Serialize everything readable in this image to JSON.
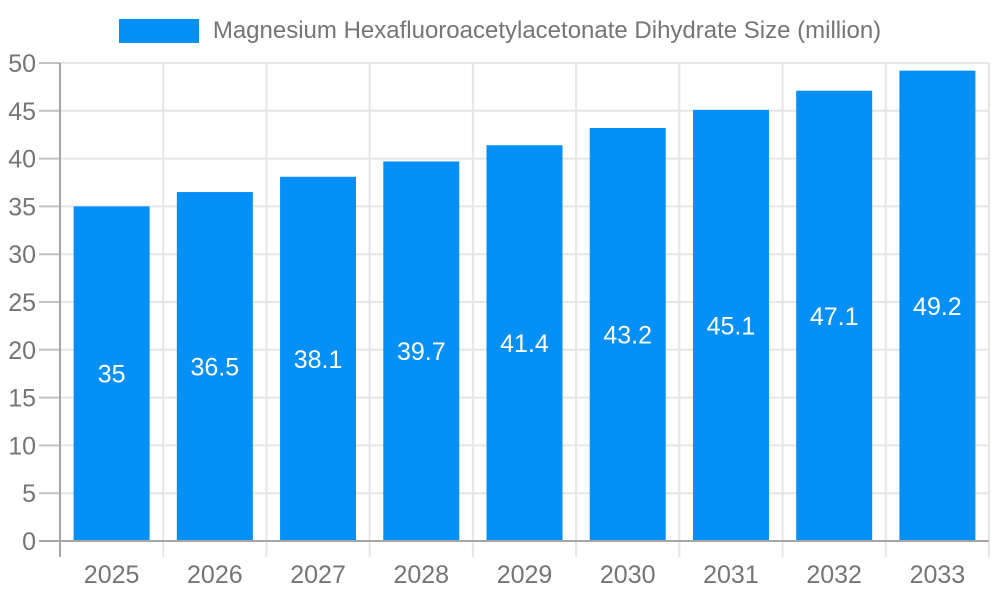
{
  "chart_data": {
    "type": "bar",
    "title": "Magnesium Hexafluoroacetylacetonate Dihydrate Size (million)",
    "legend_position": "top-center",
    "categories": [
      "2025",
      "2026",
      "2027",
      "2028",
      "2029",
      "2030",
      "2031",
      "2032",
      "2033"
    ],
    "values": [
      35,
      36.5,
      38.1,
      39.7,
      41.4,
      43.2,
      45.1,
      47.1,
      49.2
    ],
    "bar_value_labels": [
      "35",
      "36.5",
      "38.1",
      "39.7",
      "41.4",
      "43.2",
      "45.1",
      "47.1",
      "49.2"
    ],
    "xlabel": "",
    "ylabel": "",
    "ylim": [
      0,
      50
    ],
    "yticks": [
      0,
      5,
      10,
      15,
      20,
      25,
      30,
      35,
      40,
      45,
      50
    ],
    "grid": true,
    "colors": {
      "bar": "#0590f8",
      "grid": "#e6e6e6",
      "axis": "#a6a6a6",
      "tick": "#c2c2c2",
      "axis_text": "#757575",
      "bar_label_text": "#ffffff",
      "background": "#ffffff"
    }
  }
}
